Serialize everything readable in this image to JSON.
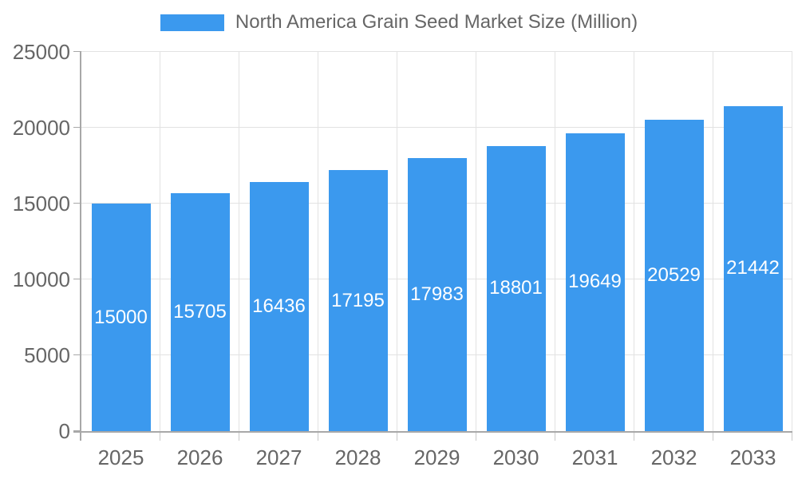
{
  "legend": {
    "label": "North America Grain Seed Market Size (Million)"
  },
  "colors": {
    "bar": "#3B99EE",
    "grid": "#E2E2E2",
    "axis": "#A8A8A8",
    "tick": "#C8C8C8",
    "tick_text": "#666666",
    "value_label_text": "#FFFFFF",
    "background": "#FFFFFF"
  },
  "chart_data": {
    "type": "bar",
    "title": "North America Grain Seed Market Size (Million)",
    "categories": [
      "2025",
      "2026",
      "2027",
      "2028",
      "2029",
      "2030",
      "2031",
      "2032",
      "2033"
    ],
    "series": [
      {
        "name": "North America Grain Seed Market Size (Million)",
        "values": [
          15000,
          15705,
          16436,
          17195,
          17983,
          18801,
          19649,
          20529,
          21442
        ]
      }
    ],
    "xlabel": "",
    "ylabel": "",
    "ylim": [
      0,
      25000
    ],
    "y_ticks": [
      0,
      5000,
      10000,
      15000,
      20000,
      25000
    ],
    "grid": "horizontal-and-vertical",
    "legend_position": "top-center",
    "data_labels": "inside-middle-white"
  }
}
